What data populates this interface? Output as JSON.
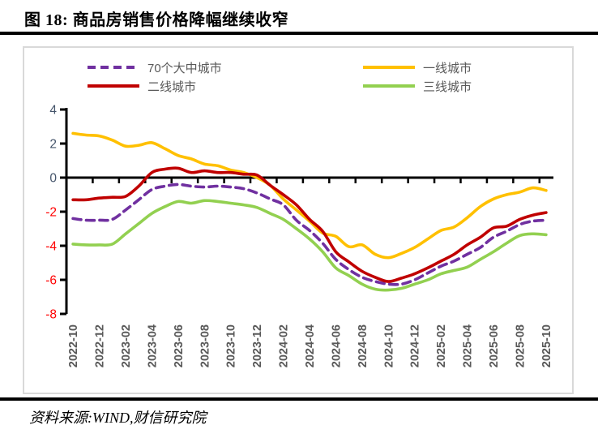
{
  "header": {
    "title": "图 18:  商品房销售价格降幅继续收窄"
  },
  "footer": {
    "source": "资料来源:WIND,财信研究院"
  },
  "chart_data": {
    "type": "line",
    "title": "商品房销售价格降幅继续收窄",
    "unit": "%",
    "x": [
      "2022-10",
      "2022-11",
      "2022-12",
      "2023-01",
      "2023-02",
      "2023-03",
      "2023-04",
      "2023-05",
      "2023-06",
      "2023-07",
      "2023-08",
      "2023-09",
      "2023-10",
      "2023-11",
      "2023-12",
      "2024-01",
      "2024-02",
      "2024-03",
      "2024-04",
      "2024-05",
      "2024-06",
      "2024-07",
      "2024-08",
      "2024-09",
      "2024-10",
      "2024-11",
      "2024-12",
      "2025-01",
      "2025-02",
      "2025-03",
      "2025-04",
      "2025-05",
      "2025-06",
      "2025-07",
      "2025-08",
      "2025-09",
      "2025-10"
    ],
    "x_label_every": 2,
    "ylim": [
      -8,
      4
    ],
    "yticks": [
      4,
      2,
      0,
      -2,
      -4,
      -6,
      -8
    ],
    "grid": false,
    "legend_position": "top",
    "series": [
      {
        "name": "70个大中城市",
        "color": "#7030A0",
        "dashed": true,
        "values": [
          -2.4,
          -2.5,
          -2.5,
          -2.45,
          -1.9,
          -1.3,
          -0.7,
          -0.5,
          -0.4,
          -0.5,
          -0.55,
          -0.5,
          -0.55,
          -0.65,
          -0.9,
          -1.25,
          -1.6,
          -2.5,
          -3.1,
          -3.85,
          -4.8,
          -5.4,
          -5.85,
          -6.1,
          -6.25,
          -6.25,
          -6.0,
          -5.6,
          -5.2,
          -4.9,
          -4.5,
          -4.1,
          -3.5,
          -3.15,
          -2.75,
          -2.55,
          -2.5
        ]
      },
      {
        "name": "一线城市",
        "color": "#FFC000",
        "dashed": false,
        "values": [
          2.6,
          2.5,
          2.45,
          2.2,
          1.85,
          1.9,
          2.05,
          1.7,
          1.3,
          1.1,
          0.8,
          0.7,
          0.45,
          0.3,
          0.0,
          -0.45,
          -1.25,
          -1.9,
          -2.55,
          -3.25,
          -3.45,
          -4.05,
          -3.95,
          -4.5,
          -4.7,
          -4.45,
          -4.1,
          -3.6,
          -3.1,
          -2.9,
          -2.35,
          -1.7,
          -1.25,
          -1.0,
          -0.85,
          -0.6,
          -0.75
        ]
      },
      {
        "name": "二线城市",
        "color": "#C00000",
        "dashed": false,
        "values": [
          -1.3,
          -1.3,
          -1.2,
          -1.15,
          -1.1,
          -0.5,
          0.3,
          0.5,
          0.55,
          0.3,
          0.4,
          0.3,
          0.3,
          0.2,
          0.15,
          -0.45,
          -1.0,
          -1.6,
          -2.45,
          -3.15,
          -4.35,
          -4.95,
          -5.5,
          -5.85,
          -6.1,
          -5.9,
          -5.65,
          -5.3,
          -4.9,
          -4.5,
          -3.95,
          -3.5,
          -2.95,
          -2.85,
          -2.45,
          -2.2,
          -2.05
        ]
      },
      {
        "name": "三线城市",
        "color": "#92D050",
        "dashed": false,
        "values": [
          -3.9,
          -3.95,
          -3.95,
          -3.9,
          -3.3,
          -2.7,
          -2.1,
          -1.7,
          -1.4,
          -1.5,
          -1.35,
          -1.4,
          -1.5,
          -1.6,
          -1.75,
          -2.1,
          -2.45,
          -3.0,
          -3.6,
          -4.35,
          -5.3,
          -5.75,
          -6.25,
          -6.55,
          -6.6,
          -6.5,
          -6.25,
          -6.0,
          -5.65,
          -5.45,
          -5.25,
          -4.8,
          -4.35,
          -3.85,
          -3.4,
          -3.3,
          -3.35
        ]
      }
    ],
    "axis_colors": {
      "positive_ticks": "#44546A",
      "negative_ticks": "#FF0000",
      "x_labels": "#595959",
      "axis_line": "#000000"
    }
  }
}
